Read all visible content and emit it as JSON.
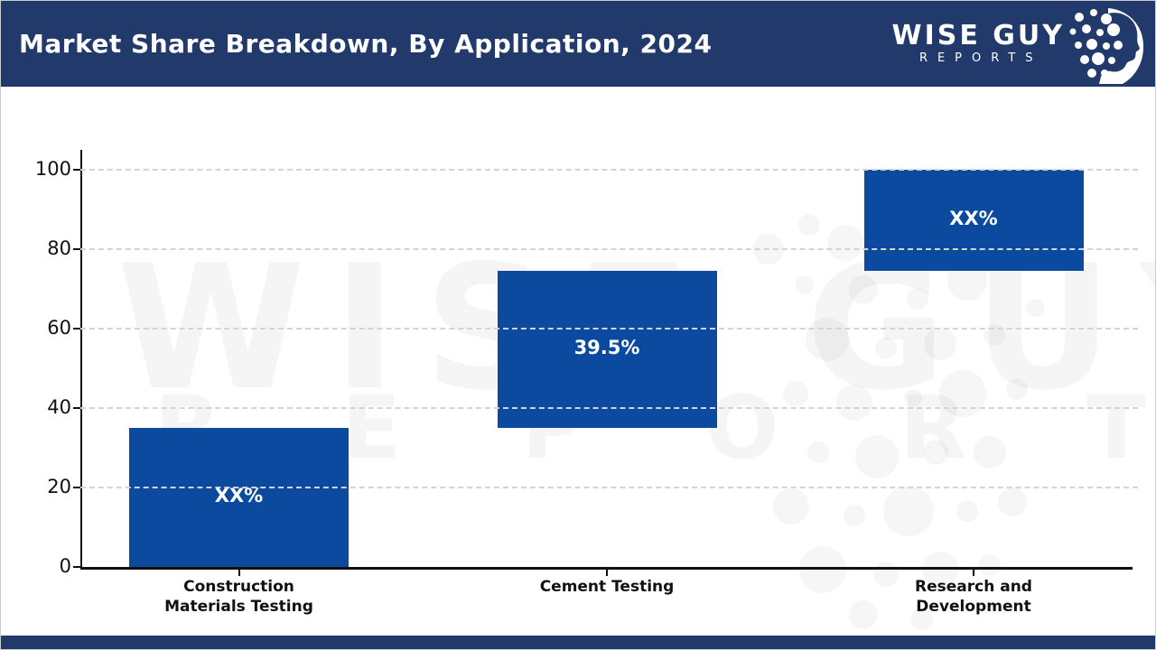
{
  "header": {
    "title": "Market Share Breakdown, By Application, 2024",
    "bg_color": "#21396b",
    "logo": {
      "line1": "WISE GUY",
      "line2": "REPORTS"
    }
  },
  "watermark": {
    "line1": "WISE GUY",
    "line2": "R E P O R T S"
  },
  "chart_data": {
    "type": "bar",
    "subtype": "waterfall",
    "title": "Market Share Breakdown, By Application, 2024",
    "categories": [
      "Construction Materials Testing",
      "Cement Testing",
      "Research and Development"
    ],
    "category_lines": [
      [
        "Construction",
        "Materials Testing"
      ],
      [
        "Cement Testing"
      ],
      [
        "Research and",
        "Development"
      ]
    ],
    "segments": [
      {
        "start": 0,
        "end": 35,
        "value": 35,
        "label": "XX%"
      },
      {
        "start": 35,
        "end": 74.5,
        "value": 39.5,
        "label": "39.5%"
      },
      {
        "start": 74.5,
        "end": 100,
        "value": 25.5,
        "label": "XX%"
      }
    ],
    "yticks": [
      0,
      20,
      40,
      60,
      80,
      100
    ],
    "ylim": [
      0,
      105
    ],
    "bar_color": "#0b4a9f",
    "grid": "horizontal-dashed-over-bars",
    "legend": "none",
    "xlabel": "",
    "ylabel": ""
  },
  "footer": {
    "bg_color": "#21396b"
  }
}
